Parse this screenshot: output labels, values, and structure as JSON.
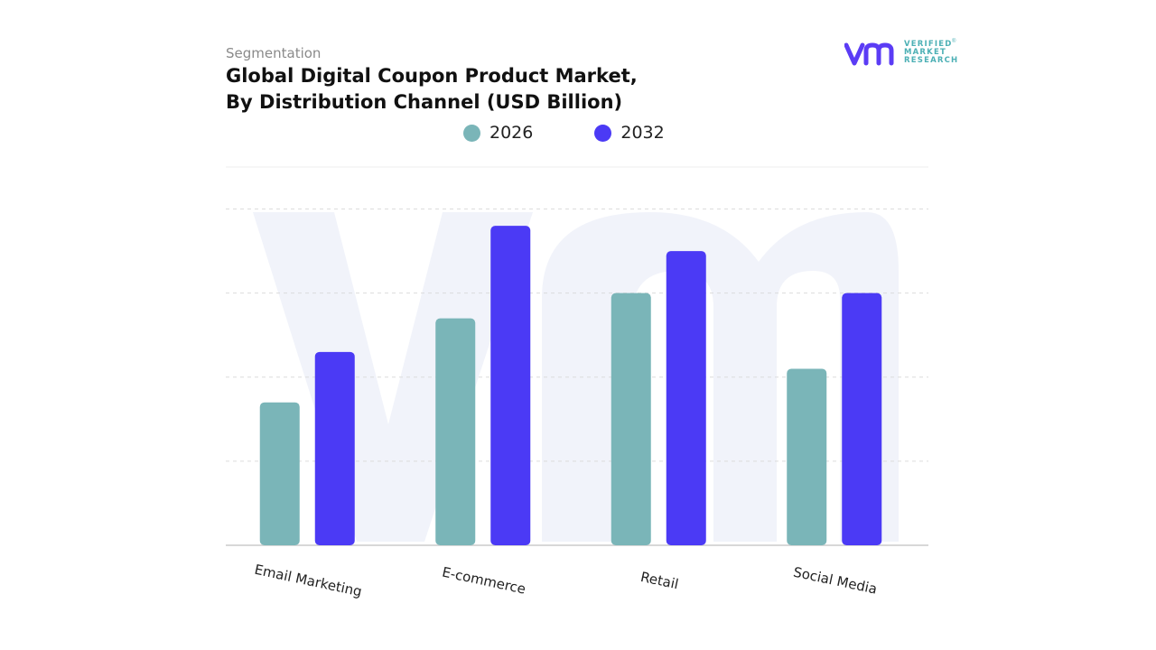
{
  "header": {
    "segment_label": "Segmentation",
    "title_line1": "Global Digital Coupon Product Market,",
    "title_line2": "By Distribution Channel (USD Billion)"
  },
  "logo": {
    "line1": "VERIFIED",
    "line2": "MARKET",
    "line3": "RESEARCH",
    "mark_color": "#5b3cf5",
    "text_color": "#4cb0b5"
  },
  "legend": [
    {
      "label": "2026",
      "color": "#7ab5b8"
    },
    {
      "label": "2032",
      "color": "#4b3af5"
    }
  ],
  "chart_data": {
    "type": "bar",
    "title": "Global Digital Coupon Product Market, By Distribution Channel (USD Billion)",
    "categories": [
      "Email Marketing",
      "E-commerce",
      "Retail",
      "Social Media"
    ],
    "series": [
      {
        "name": "2026",
        "color": "#7ab5b8",
        "values": [
          1.7,
          2.7,
          3.0,
          2.1
        ]
      },
      {
        "name": "2032",
        "color": "#4b3af5",
        "values": [
          2.3,
          3.8,
          3.5,
          3.0
        ]
      }
    ],
    "ylim": [
      0,
      4.5
    ],
    "grid": true,
    "y_axis_labels_visible": false,
    "legend_position": "top-center"
  }
}
